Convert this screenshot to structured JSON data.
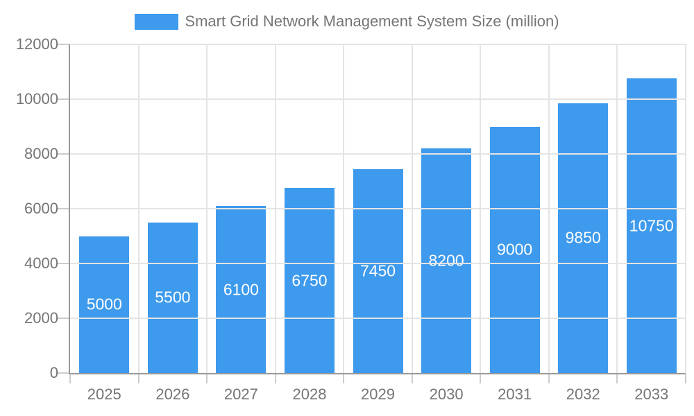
{
  "legend": {
    "label": "Smart Grid Network Management System Size (million)"
  },
  "chart_data": {
    "type": "bar",
    "title": "Smart Grid Network Management System Size (million)",
    "categories": [
      "2025",
      "2026",
      "2027",
      "2028",
      "2029",
      "2030",
      "2031",
      "2032",
      "2033"
    ],
    "values": [
      5000,
      5500,
      6100,
      6750,
      7450,
      8200,
      9000,
      9850,
      10750
    ],
    "xlabel": "",
    "ylabel": "",
    "ylim": [
      0,
      12000
    ],
    "yticks": [
      0,
      2000,
      4000,
      6000,
      8000,
      10000,
      12000
    ],
    "grid": true,
    "legend_position": "top",
    "value_labels": "inside-center",
    "colors": {
      "bar": "#3E9AEC",
      "grid": "#e4e4e4",
      "axis": "#999999",
      "tick": "#cccccc",
      "tick_text": "#757575",
      "value_label": "#ffffff",
      "background": "#ffffff"
    }
  }
}
